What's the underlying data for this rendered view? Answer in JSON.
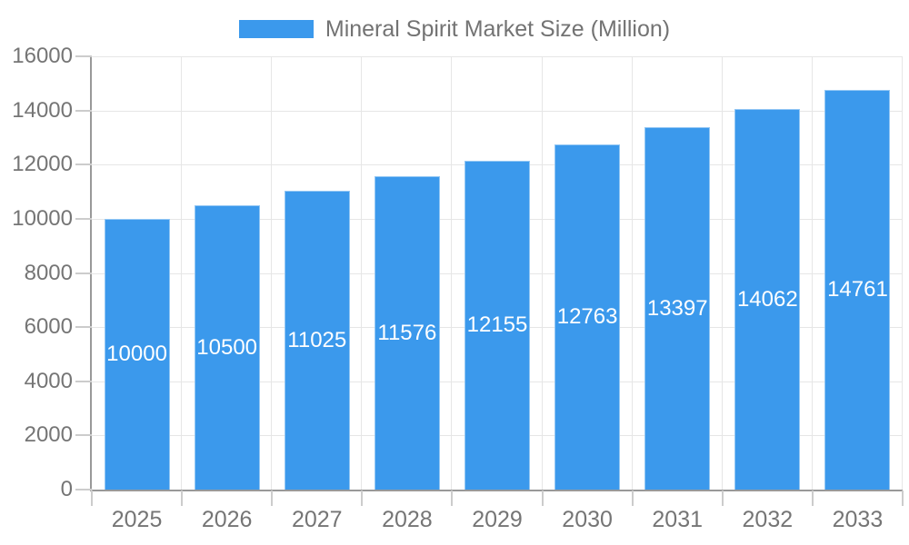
{
  "chart_data": {
    "type": "bar",
    "title": "Mineral Spirit Market Size (Million)",
    "categories": [
      "2025",
      "2026",
      "2027",
      "2028",
      "2029",
      "2030",
      "2031",
      "2032",
      "2033"
    ],
    "values": [
      10000,
      10500,
      11025,
      11576,
      12155,
      12763,
      13397,
      14062,
      14761
    ],
    "xlabel": "",
    "ylabel": "",
    "ylim": [
      0,
      16000
    ],
    "y_ticks": [
      0,
      2000,
      4000,
      6000,
      8000,
      10000,
      12000,
      14000,
      16000
    ],
    "grid": true,
    "legend_position": "top-center",
    "bar_value_labels_inside": true,
    "colors": {
      "bar_fill": "#3B99EC",
      "bar_border": "#8FC2F2",
      "bar_value_text": "#ffffff",
      "axis_line": "#999999",
      "gridline": "#e6e6e6",
      "tick": "#cccccc",
      "axis_text": "#757575",
      "legend_text": "#737373",
      "background": "#ffffff"
    }
  }
}
